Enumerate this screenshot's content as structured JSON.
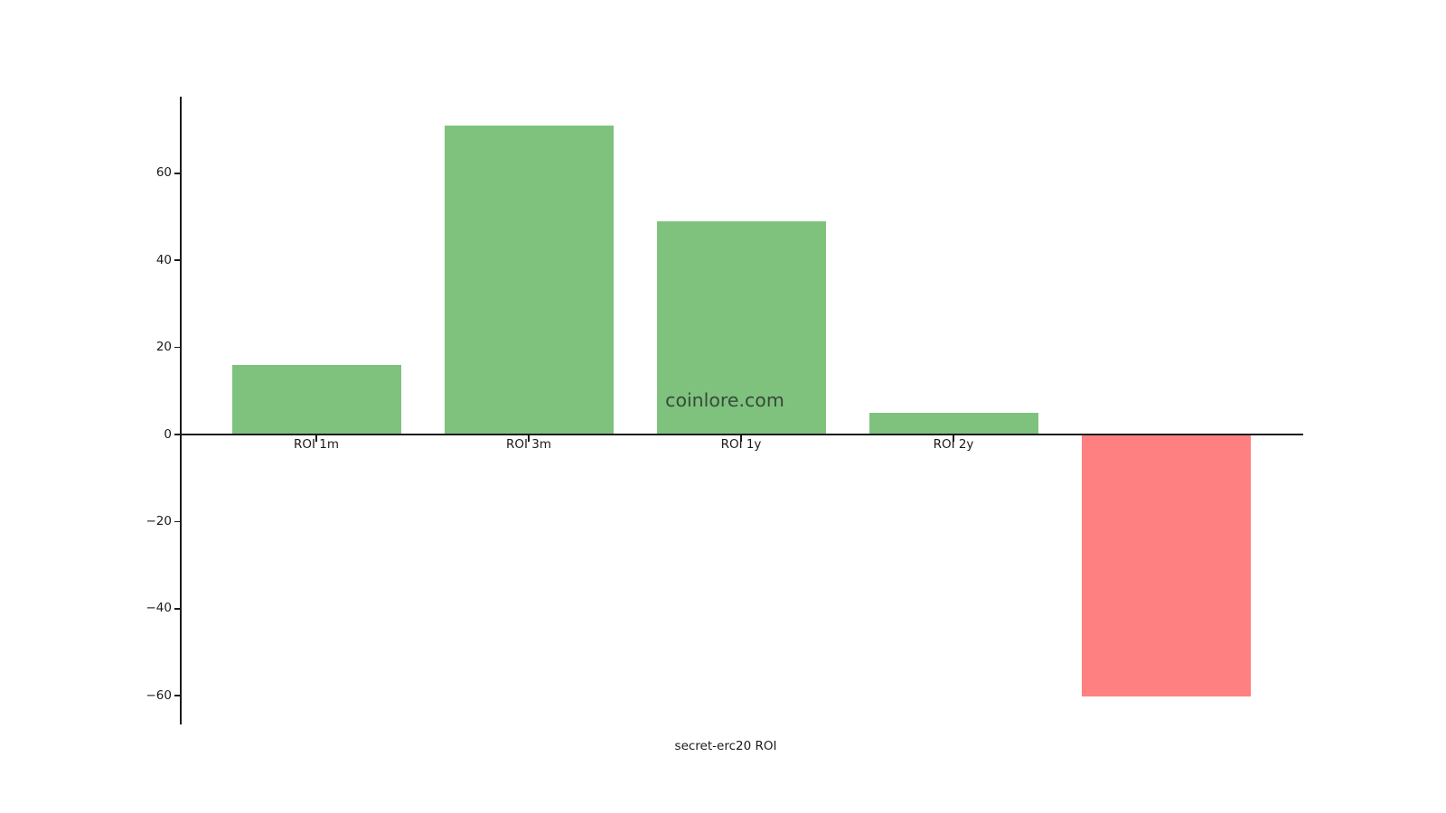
{
  "chart_data": {
    "type": "bar",
    "title": "secret-erc20 ROI",
    "watermark": "coinlore.com",
    "categories": [
      "ROI 1m",
      "ROI 3m",
      "ROI 1y",
      "ROI 2y",
      ""
    ],
    "values": [
      16,
      71,
      49,
      5,
      -60
    ],
    "yticks": [
      {
        "label": "60",
        "value": 60
      },
      {
        "label": "40",
        "value": 40
      },
      {
        "label": "20",
        "value": 20
      },
      {
        "label": "0",
        "value": 0
      },
      {
        "label": "−20",
        "value": -20
      },
      {
        "label": "−40",
        "value": -40
      },
      {
        "label": "−60",
        "value": -60
      }
    ],
    "ylim": [
      -66.5,
      77.5
    ],
    "grid": false,
    "legend_position": "none",
    "positive_color": "#7ec27e",
    "negative_color": "#ff8080",
    "axis_color": "#1a1a1a",
    "text_color": "#1a1a1a"
  }
}
